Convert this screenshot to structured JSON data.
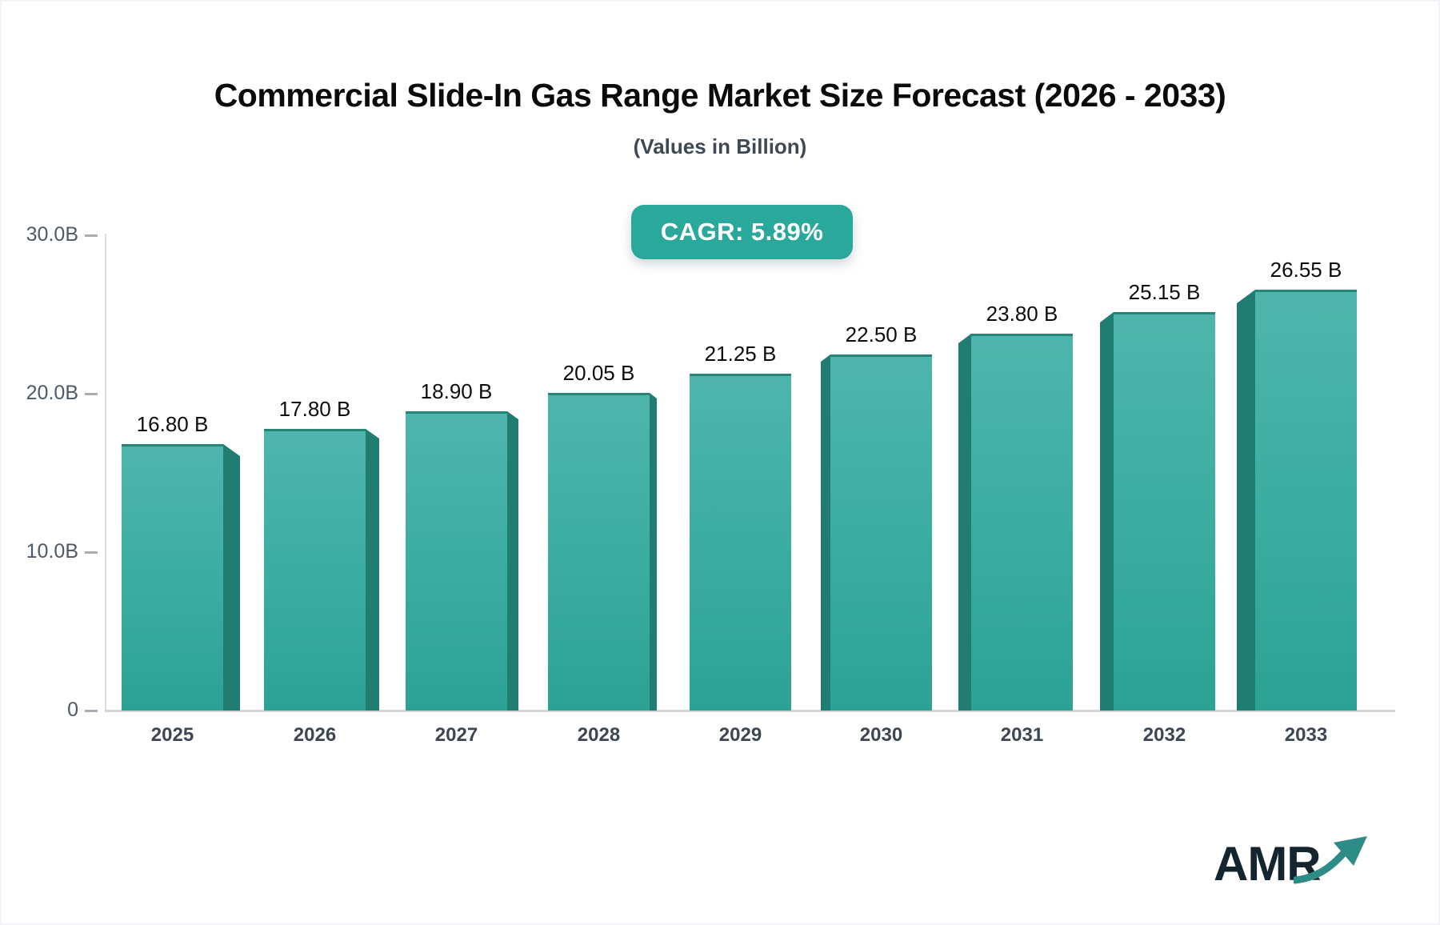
{
  "page": {
    "title": "Commercial Slide-In Gas Range Market Size Forecast (2026 - 2033)",
    "subtitle": "(Values in Billion)",
    "cagr_label": "CAGR: 5.89%",
    "logo_text": "AMR"
  },
  "colors": {
    "accent_teal": "#2AA89B",
    "bar_face_top": "#4FB5AC",
    "bar_face_bottom": "#2CA294",
    "bar_side": "#217C72",
    "bar_top_edge": "#268478",
    "axis_line": "#d2d5da",
    "logo_text_color": "#152530",
    "logo_arrow": "#2D8C85"
  },
  "chart_data": {
    "type": "bar",
    "title": "Commercial Slide-In Gas Range Market Size Forecast (2026 - 2033)",
    "subtitle": "(Values in Billion)",
    "cagr": "5.89%",
    "categories": [
      "2025",
      "2026",
      "2027",
      "2028",
      "2029",
      "2030",
      "2031",
      "2032",
      "2033"
    ],
    "values": [
      16.8,
      17.8,
      18.9,
      20.05,
      21.25,
      22.5,
      23.8,
      25.15,
      26.55
    ],
    "bar_labels": [
      "16.80 B",
      "17.80 B",
      "18.90 B",
      "20.05 B",
      "21.25 B",
      "22.50 B",
      "23.80 B",
      "25.15 B",
      "26.55 B"
    ],
    "xlabel": "",
    "ylabel": "",
    "ylim": [
      0,
      30
    ],
    "yticks": [
      {
        "label": "30.0B",
        "value": 30
      },
      {
        "label": "20.0B",
        "value": 20
      },
      {
        "label": "10.0B",
        "value": 10
      },
      {
        "label": "0",
        "value": 0
      }
    ],
    "grid": false,
    "legend": false
  }
}
